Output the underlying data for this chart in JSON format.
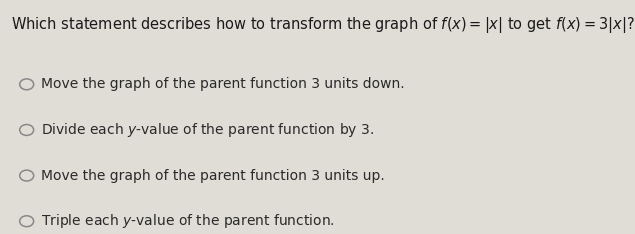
{
  "background_color": "#c8c4bc",
  "options_bg_color": "#e8e5e0",
  "title": "Which statement describes how to transform the graph of $f(x) = |x|$ to get $f(x) = 3|x|$?",
  "title_fontsize": 10.5,
  "title_color": "#1a1a1a",
  "options": [
    "Move the graph of the parent function 3 units down.",
    "Divide each $y$-value of the parent function by 3.",
    "Move the graph of the parent function 3 units up.",
    "Triple each $y$-value of the parent function."
  ],
  "option_fontsize": 10.0,
  "option_color": "#2a2a2a",
  "circle_color": "#888888",
  "title_bg": "#c8c4bc",
  "main_bg": "#e0ddd7"
}
